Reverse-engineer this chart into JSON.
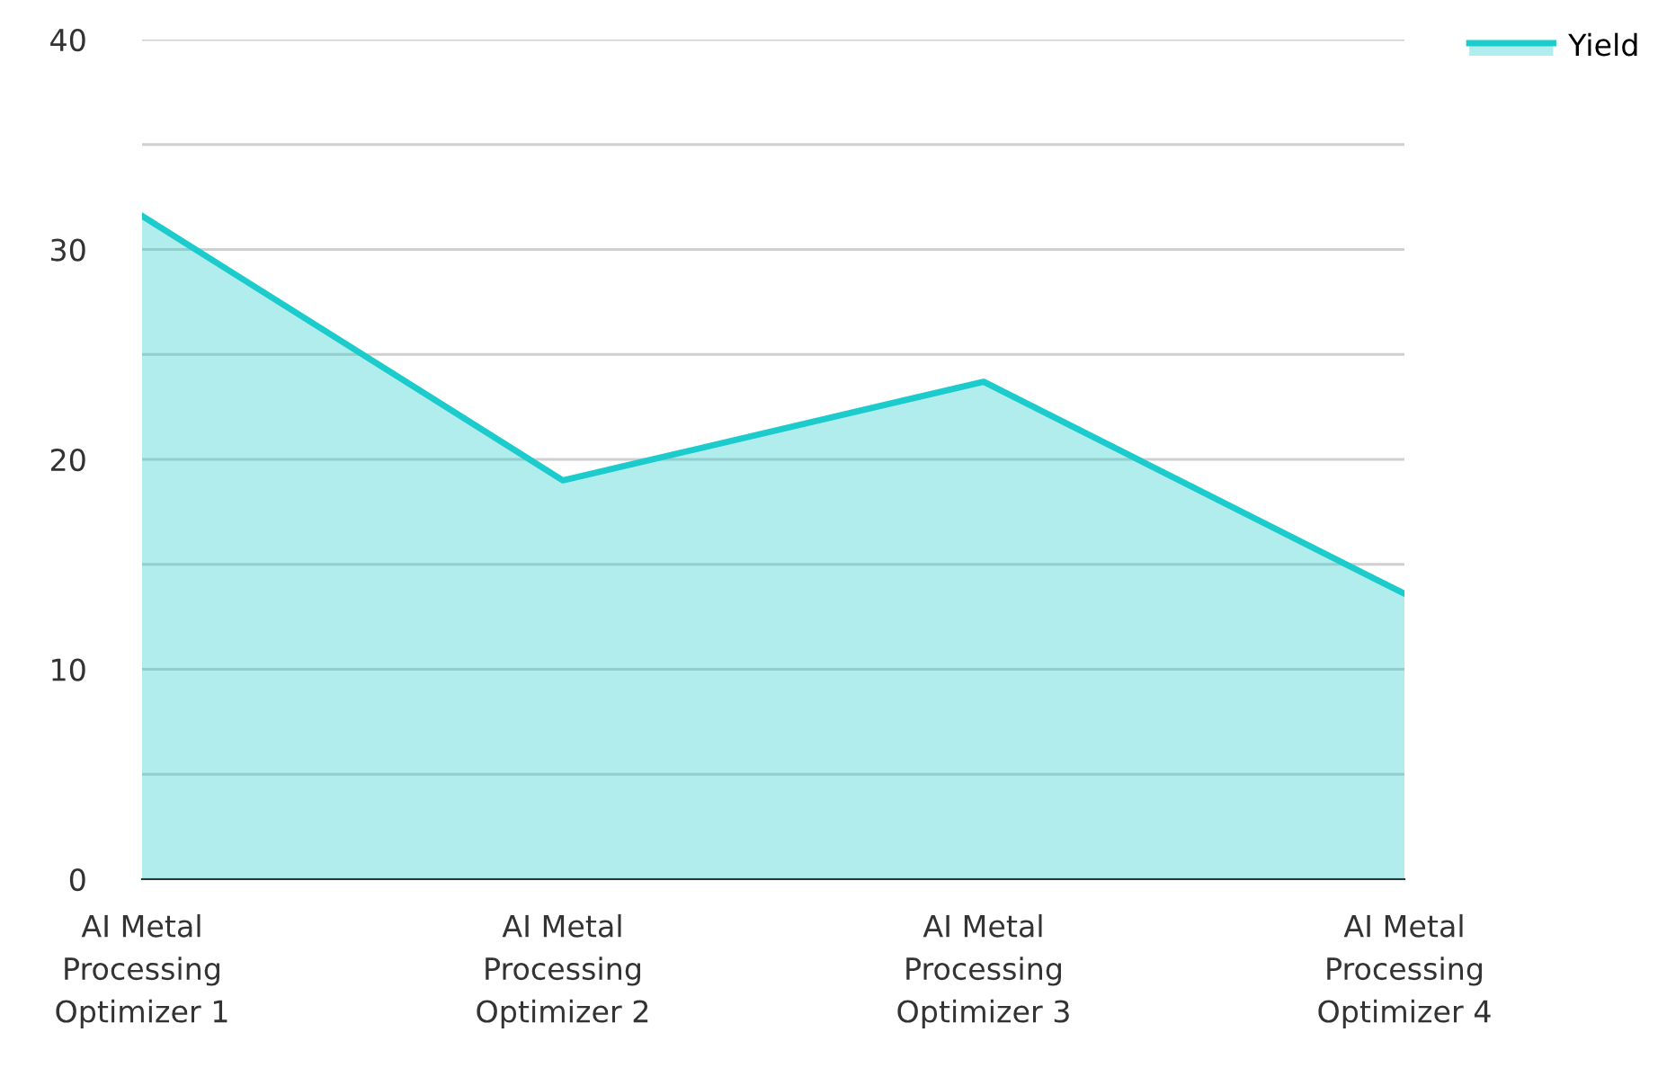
{
  "chart_data": {
    "type": "area",
    "categories": [
      "AI Metal\nProcessing\nOptimizer 1",
      "AI Metal\nProcessing\nOptimizer 2",
      "AI Metal\nProcessing\nOptimizer 3",
      "AI Metal\nProcessing\nOptimizer 4"
    ],
    "series": [
      {
        "name": "Yield",
        "color": "#1ccbcc",
        "values": [
          31.6,
          19.0,
          23.7,
          13.6
        ]
      }
    ],
    "ylim": [
      0,
      40
    ],
    "yticks": [
      0,
      {
        "value": 5,
        "label": null
      },
      10,
      {
        "value": 15,
        "label": null
      },
      20,
      {
        "value": 25,
        "label": null
      },
      30,
      {
        "value": 35,
        "label": null
      },
      40
    ],
    "grid": "y",
    "legend": "top right",
    "line_style": "solid",
    "marker": "none"
  }
}
